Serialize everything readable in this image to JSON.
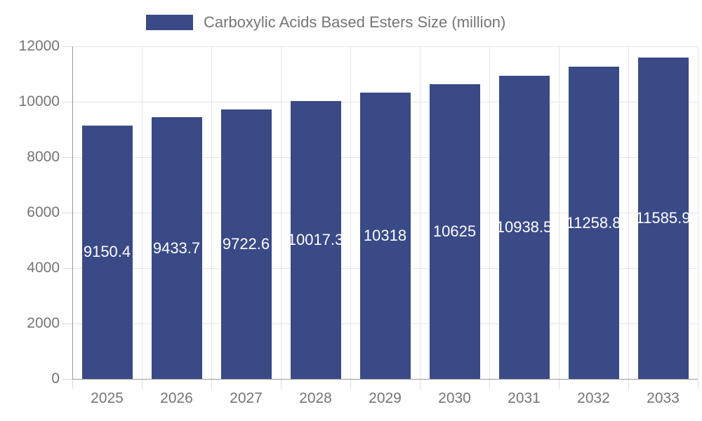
{
  "legend": {
    "label": "Carboxylic Acids Based Esters Size (million)"
  },
  "chart_data": {
    "type": "bar",
    "title": "Carboxylic Acids Based Esters Size (million)",
    "categories": [
      "2025",
      "2026",
      "2027",
      "2028",
      "2029",
      "2030",
      "2031",
      "2032",
      "2033"
    ],
    "values": [
      9150.4,
      9433.7,
      9722.6,
      10017.3,
      10318,
      10625,
      10938.5,
      11258.8,
      11585.9
    ],
    "bar_labels": [
      "9150.4",
      "9433.7",
      "9722.6",
      "10017.3",
      "10318",
      "10625",
      "10938.5",
      "11258.8",
      "11585.9"
    ],
    "xlabel": "",
    "ylabel": "",
    "ylim": [
      0,
      12000
    ],
    "yticks": [
      0,
      2000,
      4000,
      6000,
      8000,
      10000,
      12000
    ],
    "grid": true,
    "legend_position": "top",
    "colors": {
      "bar": "#3A4A87",
      "bar_label": "#FFFFFF",
      "axis_line": "#999999",
      "tick": "#DBDBDE",
      "grid_line": "#E5E5E9",
      "axis_text": "#757575",
      "legend_text": "#757575",
      "background": "#FFFFFF"
    }
  }
}
